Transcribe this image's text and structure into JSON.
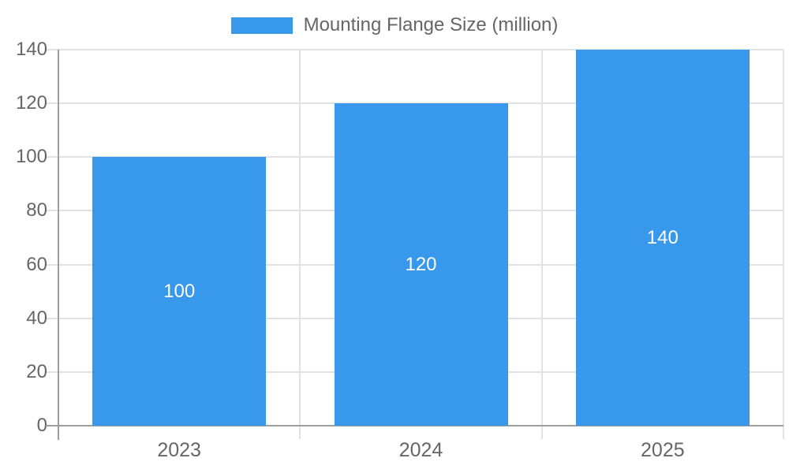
{
  "legend": {
    "label": "Mounting Flange Size (million)"
  },
  "colors": {
    "bar": "#3898ec",
    "axis": "#9e9e9e",
    "grid": "#e2e2e2",
    "text": "#666666",
    "bar_label": "#ffffff",
    "background": "#ffffff"
  },
  "chart_data": {
    "type": "bar",
    "title": "",
    "xlabel": "",
    "ylabel": "",
    "categories": [
      "2023",
      "2024",
      "2025"
    ],
    "values": [
      100,
      120,
      140
    ],
    "series_name": "Mounting Flange Size (million)",
    "ylim": [
      0,
      140
    ],
    "yticks": [
      0,
      20,
      40,
      60,
      80,
      100,
      120,
      140
    ],
    "grid": true,
    "legend_position": "top-center",
    "value_labels_inside_bars": true
  }
}
